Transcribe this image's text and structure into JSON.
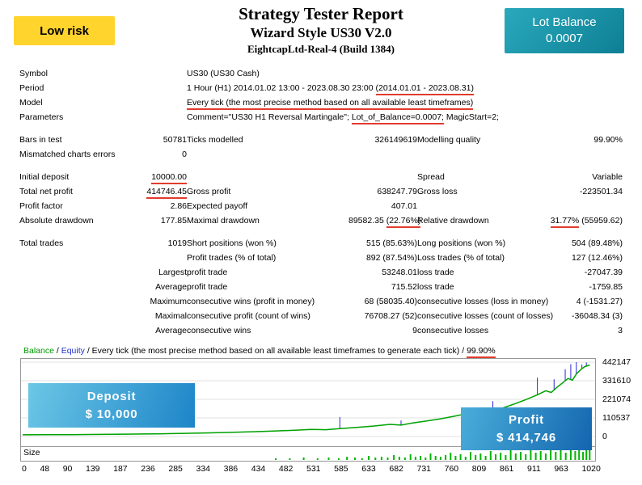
{
  "header": {
    "title": "Strategy Tester Report",
    "subtitle": "Wizard Style US30 V2.0",
    "build": "EightcapLtd-Real-4 (Build 1384)"
  },
  "badges": {
    "low_risk": {
      "label": "Low risk"
    },
    "lot_balance": {
      "line1": "Lot Balance",
      "line2": "0.0007"
    },
    "deposit": {
      "line1": "Deposit",
      "line2": "$ 10,000"
    },
    "profit": {
      "line1": "Profit",
      "line2": "$ 414,746"
    }
  },
  "colors": {
    "low_risk_bg": "#ffd42c",
    "lot_balance_from": "#2aa9bc",
    "lot_balance_to": "#0e7f95",
    "deposit_from": "#6cc7e6",
    "deposit_to": "#1d85c8",
    "profit_from": "#49aeda",
    "profit_to": "#1465ae",
    "balance_line": "#00a400",
    "equity_line": "#2727d4",
    "size_bar": "#00b400",
    "underline": "#e23b2e"
  },
  "report": {
    "rows": [
      {
        "cells": [
          {
            "c": 1,
            "t": "Symbol"
          },
          {
            "c": 3,
            "s": 4,
            "t": "US30 (US30 Cash)"
          }
        ]
      },
      {
        "cells": [
          {
            "c": 1,
            "t": "Period"
          },
          {
            "c": 3,
            "s": 4,
            "p": [
              {
                "t": "1 Hour (H1) 2014.01.02 13:00 - 2023.08.30 23:00 "
              },
              {
                "t": "(2014.01.01 - 2023.08.31)",
                "u": true
              }
            ]
          }
        ]
      },
      {
        "cells": [
          {
            "c": 1,
            "t": "Model"
          },
          {
            "c": 3,
            "s": 4,
            "p": [
              {
                "t": "Every tick (the most precise method based on all available least timeframes)",
                "u": true
              }
            ]
          }
        ]
      },
      {
        "cells": [
          {
            "c": 1,
            "t": "Parameters"
          },
          {
            "c": 3,
            "s": 4,
            "p": [
              {
                "t": "Comment=\"US30 H1 Reversal Martingale\"; "
              },
              {
                "t": "Lot_of_Balance=0.0007;",
                "u": true
              },
              {
                "t": " MagicStart=2;"
              }
            ]
          }
        ]
      },
      {
        "spacer": true
      },
      {
        "cells": [
          {
            "c": 1,
            "t": "Bars in test"
          },
          {
            "c": 2,
            "a": "r",
            "t": "50781"
          },
          {
            "c": 3,
            "t": "Ticks modelled"
          },
          {
            "c": 4,
            "a": "r",
            "t": "326149619"
          },
          {
            "c": 5,
            "t": "Modelling quality"
          },
          {
            "c": 6,
            "a": "r",
            "t": "99.90%"
          }
        ]
      },
      {
        "cells": [
          {
            "c": 1,
            "t": "Mismatched charts errors"
          },
          {
            "c": 2,
            "a": "r",
            "t": "0"
          }
        ]
      },
      {
        "spacer": true
      },
      {
        "cells": [
          {
            "c": 1,
            "t": "Initial deposit"
          },
          {
            "c": 2,
            "a": "r",
            "p": [
              {
                "t": "10000.00",
                "u": true
              }
            ]
          },
          {
            "c": 5,
            "t": "Spread"
          },
          {
            "c": 6,
            "a": "r",
            "t": "Variable"
          }
        ]
      },
      {
        "cells": [
          {
            "c": 1,
            "t": "Total net profit"
          },
          {
            "c": 2,
            "a": "r",
            "p": [
              {
                "t": "414746.45",
                "u": true
              }
            ]
          },
          {
            "c": 3,
            "t": "Gross profit"
          },
          {
            "c": 4,
            "a": "r",
            "t": "638247.79"
          },
          {
            "c": 5,
            "t": "Gross loss"
          },
          {
            "c": 6,
            "a": "r",
            "t": "-223501.34"
          }
        ]
      },
      {
        "cells": [
          {
            "c": 1,
            "t": "Profit factor"
          },
          {
            "c": 2,
            "a": "r",
            "t": "2.86"
          },
          {
            "c": 3,
            "t": "Expected payoff"
          },
          {
            "c": 4,
            "a": "r",
            "t": "407.01"
          }
        ]
      },
      {
        "cells": [
          {
            "c": 1,
            "t": "Absolute drawdown"
          },
          {
            "c": 2,
            "a": "r",
            "t": "177.85"
          },
          {
            "c": 3,
            "t": "Maximal drawdown"
          },
          {
            "c": 4,
            "a": "r",
            "p": [
              {
                "t": "89582.35 "
              },
              {
                "t": "(22.76%)",
                "u": true
              }
            ]
          },
          {
            "c": 5,
            "t": "Relative drawdown"
          },
          {
            "c": 6,
            "a": "r",
            "p": [
              {
                "t": "31.77%",
                "u": true
              },
              {
                "t": " (55959.62)"
              }
            ]
          }
        ]
      },
      {
        "spacer": true
      },
      {
        "cells": [
          {
            "c": 1,
            "t": "Total trades"
          },
          {
            "c": 2,
            "a": "r",
            "t": "1019"
          },
          {
            "c": 3,
            "t": "Short positions (won %)"
          },
          {
            "c": 4,
            "a": "r",
            "t": "515 (85.63%)"
          },
          {
            "c": 5,
            "t": "Long positions (won %)"
          },
          {
            "c": 6,
            "a": "r",
            "t": "504 (89.48%)"
          }
        ]
      },
      {
        "cells": [
          {
            "c": 3,
            "t": "Profit trades (% of total)"
          },
          {
            "c": 4,
            "a": "r",
            "t": "892 (87.54%)"
          },
          {
            "c": 5,
            "t": "Loss trades (% of total)"
          },
          {
            "c": 6,
            "a": "r",
            "t": "127 (12.46%)"
          }
        ]
      },
      {
        "cells": [
          {
            "c": 2,
            "a": "r",
            "t": "Largest"
          },
          {
            "c": 3,
            "t": "profit trade"
          },
          {
            "c": 4,
            "a": "r",
            "t": "53248.01"
          },
          {
            "c": 5,
            "t": "loss trade"
          },
          {
            "c": 6,
            "a": "r",
            "t": "-27047.39"
          }
        ]
      },
      {
        "cells": [
          {
            "c": 2,
            "a": "r",
            "t": "Average"
          },
          {
            "c": 3,
            "t": "profit trade"
          },
          {
            "c": 4,
            "a": "r",
            "t": "715.52"
          },
          {
            "c": 5,
            "t": "loss trade"
          },
          {
            "c": 6,
            "a": "r",
            "t": "-1759.85"
          }
        ]
      },
      {
        "cells": [
          {
            "c": 2,
            "a": "r",
            "t": "Maximum"
          },
          {
            "c": 3,
            "t": "consecutive wins (profit in money)"
          },
          {
            "c": 4,
            "a": "r",
            "t": "68 (58035.40)"
          },
          {
            "c": 5,
            "t": "consecutive losses (loss in money)"
          },
          {
            "c": 6,
            "a": "r",
            "t": "4 (-1531.27)"
          }
        ]
      },
      {
        "cells": [
          {
            "c": 2,
            "a": "r",
            "t": "Maximal"
          },
          {
            "c": 3,
            "t": "consecutive profit (count of wins)"
          },
          {
            "c": 4,
            "a": "r",
            "t": "76708.27 (52)"
          },
          {
            "c": 5,
            "t": "consecutive losses (count of losses)"
          },
          {
            "c": 6,
            "a": "r",
            "t": "-36048.34 (3)"
          }
        ]
      },
      {
        "cells": [
          {
            "c": 2,
            "a": "r",
            "t": "Average"
          },
          {
            "c": 3,
            "t": "consecutive wins"
          },
          {
            "c": 4,
            "a": "r",
            "t": "9"
          },
          {
            "c": 5,
            "t": "consecutive losses"
          },
          {
            "c": 6,
            "a": "r",
            "t": "3"
          }
        ]
      }
    ]
  },
  "chart_data": {
    "type": "line",
    "legend": {
      "balance": "Balance",
      "sep": "/",
      "equity": "Equity",
      "middle": "/ Every tick (the most precise method based on all available least timeframes to generate each tick) /",
      "quality": "99.90%"
    },
    "size_label": "Size",
    "y_ticks": [
      442147,
      331610,
      221074,
      110537,
      0
    ],
    "x_ticks": [
      "0",
      "48",
      "90",
      "139",
      "187",
      "236",
      "285",
      "334",
      "386",
      "434",
      "482",
      "531",
      "585",
      "633",
      "682",
      "731",
      "760",
      "809",
      "861",
      "911",
      "963",
      "1020"
    ],
    "x_max": 1020,
    "y_axis_max": 442147,
    "balance": [
      [
        0,
        10000
      ],
      [
        40,
        10400
      ],
      [
        80,
        11000
      ],
      [
        120,
        11800
      ],
      [
        160,
        12800
      ],
      [
        200,
        14200
      ],
      [
        240,
        16000
      ],
      [
        280,
        18000
      ],
      [
        320,
        20500
      ],
      [
        360,
        23500
      ],
      [
        400,
        27000
      ],
      [
        430,
        30000
      ],
      [
        460,
        33500
      ],
      [
        490,
        37500
      ],
      [
        520,
        42500
      ],
      [
        545,
        40500
      ],
      [
        570,
        47000
      ],
      [
        600,
        54000
      ],
      [
        630,
        62000
      ],
      [
        660,
        72000
      ],
      [
        680,
        68000
      ],
      [
        700,
        80000
      ],
      [
        725,
        92000
      ],
      [
        750,
        105000
      ],
      [
        775,
        120000
      ],
      [
        800,
        137000
      ],
      [
        825,
        155000
      ],
      [
        845,
        148000
      ],
      [
        865,
        172000
      ],
      [
        885,
        195000
      ],
      [
        905,
        220000
      ],
      [
        925,
        248000
      ],
      [
        940,
        272000
      ],
      [
        950,
        262000
      ],
      [
        960,
        292000
      ],
      [
        970,
        318000
      ],
      [
        980,
        345000
      ],
      [
        988,
        335000
      ],
      [
        995,
        372000
      ],
      [
        1003,
        398000
      ],
      [
        1010,
        415000
      ],
      [
        1019,
        424746
      ]
    ],
    "equity_spikes": [
      [
        570,
        115000
      ],
      [
        680,
        95000
      ],
      [
        845,
        210000
      ],
      [
        925,
        350000
      ],
      [
        955,
        340000
      ],
      [
        975,
        400000
      ],
      [
        985,
        430000
      ],
      [
        995,
        442000
      ],
      [
        1005,
        428000
      ],
      [
        1013,
        440000
      ]
    ],
    "size_bars": [
      [
        455,
        2
      ],
      [
        480,
        2
      ],
      [
        505,
        3
      ],
      [
        530,
        2
      ],
      [
        550,
        3
      ],
      [
        568,
        2
      ],
      [
        583,
        4
      ],
      [
        597,
        3
      ],
      [
        610,
        2
      ],
      [
        622,
        5
      ],
      [
        634,
        3
      ],
      [
        645,
        4
      ],
      [
        656,
        3
      ],
      [
        667,
        6
      ],
      [
        677,
        4
      ],
      [
        687,
        3
      ],
      [
        697,
        7
      ],
      [
        706,
        4
      ],
      [
        715,
        5
      ],
      [
        724,
        3
      ],
      [
        733,
        8
      ],
      [
        742,
        5
      ],
      [
        751,
        4
      ],
      [
        760,
        6
      ],
      [
        769,
        9
      ],
      [
        778,
        5
      ],
      [
        787,
        7
      ],
      [
        796,
        4
      ],
      [
        805,
        10
      ],
      [
        814,
        6
      ],
      [
        823,
        8
      ],
      [
        832,
        5
      ],
      [
        841,
        11
      ],
      [
        850,
        7
      ],
      [
        859,
        9
      ],
      [
        868,
        6
      ],
      [
        877,
        12
      ],
      [
        886,
        8
      ],
      [
        895,
        10
      ],
      [
        904,
        7
      ],
      [
        913,
        13
      ],
      [
        922,
        9
      ],
      [
        931,
        11
      ],
      [
        940,
        8
      ],
      [
        949,
        14
      ],
      [
        958,
        10
      ],
      [
        967,
        12
      ],
      [
        976,
        9
      ],
      [
        985,
        15
      ],
      [
        993,
        11
      ],
      [
        1000,
        13
      ],
      [
        1007,
        10
      ],
      [
        1013,
        14
      ],
      [
        1019,
        12
      ]
    ]
  }
}
